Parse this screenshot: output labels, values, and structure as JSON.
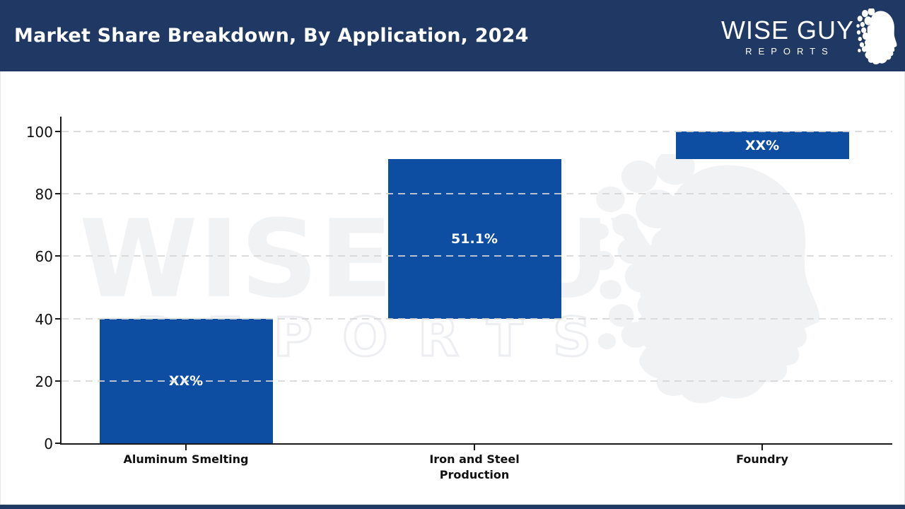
{
  "header": {
    "title": "Market Share Breakdown, By Application, 2024",
    "logo": {
      "line1": "WISE GUY",
      "line2": "REPORTS"
    }
  },
  "watermark": {
    "line1": "WISE GUY",
    "line2": "REPORTS"
  },
  "colors": {
    "header_bg": "#1f3864",
    "footer_bg": "#1f3864",
    "bar": "#0d4da2",
    "bar_label": "#ffffff",
    "grid": "#d6d6d6",
    "axis": "#1a1a1a",
    "watermark": "#f1f2f4"
  },
  "chart_data": {
    "type": "bar",
    "subtype": "waterfall",
    "title": "Market Share Breakdown, By Application, 2024",
    "categories": [
      "Aluminum Smelting",
      "Iron and Steel\nProduction",
      "Foundry"
    ],
    "bars": [
      {
        "category": "Aluminum Smelting",
        "base": 0,
        "value": 40,
        "label": "XX%"
      },
      {
        "category": "Iron and Steel Production",
        "base": 40,
        "value": 51.1,
        "label": "51.1%"
      },
      {
        "category": "Foundry",
        "base": 91.1,
        "value": 8.9,
        "label": "XX%"
      }
    ],
    "ylabel": "",
    "xlabel": "",
    "ylim": [
      0,
      100
    ],
    "yticks": [
      0,
      20,
      40,
      60,
      80,
      100
    ],
    "grid": "horizontal-dashed",
    "legend": null
  }
}
